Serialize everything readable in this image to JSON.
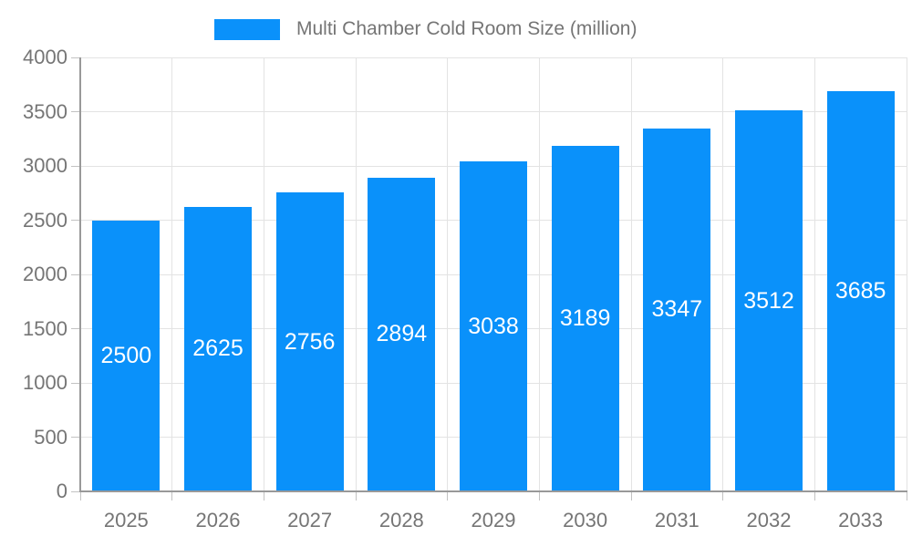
{
  "chart_data": {
    "type": "bar",
    "title": "",
    "categories": [
      "2025",
      "2026",
      "2027",
      "2028",
      "2029",
      "2030",
      "2031",
      "2032",
      "2033"
    ],
    "series": [
      {
        "name": "Multi Chamber Cold Room Size (million)",
        "values": [
          2500,
          2625,
          2756,
          2894,
          3038,
          3189,
          3347,
          3512,
          3685
        ]
      }
    ],
    "value_labels_shown": true,
    "xlabel": "",
    "ylabel": "",
    "ylim": [
      0,
      4000
    ],
    "ytick_step": 500,
    "ytick_labels": [
      "0",
      "500",
      "1000",
      "1500",
      "2000",
      "2500",
      "3000",
      "3500",
      "4000"
    ],
    "grid": true,
    "legend_position": "top",
    "colors": {
      "bar": "#0a91fa",
      "value_label": "#ffffff",
      "axis_text": "#757575",
      "grid_line": "#e3e3e3",
      "tick_line": "#c2c2c2",
      "axis_line": "#999999",
      "background": "#ffffff"
    }
  }
}
